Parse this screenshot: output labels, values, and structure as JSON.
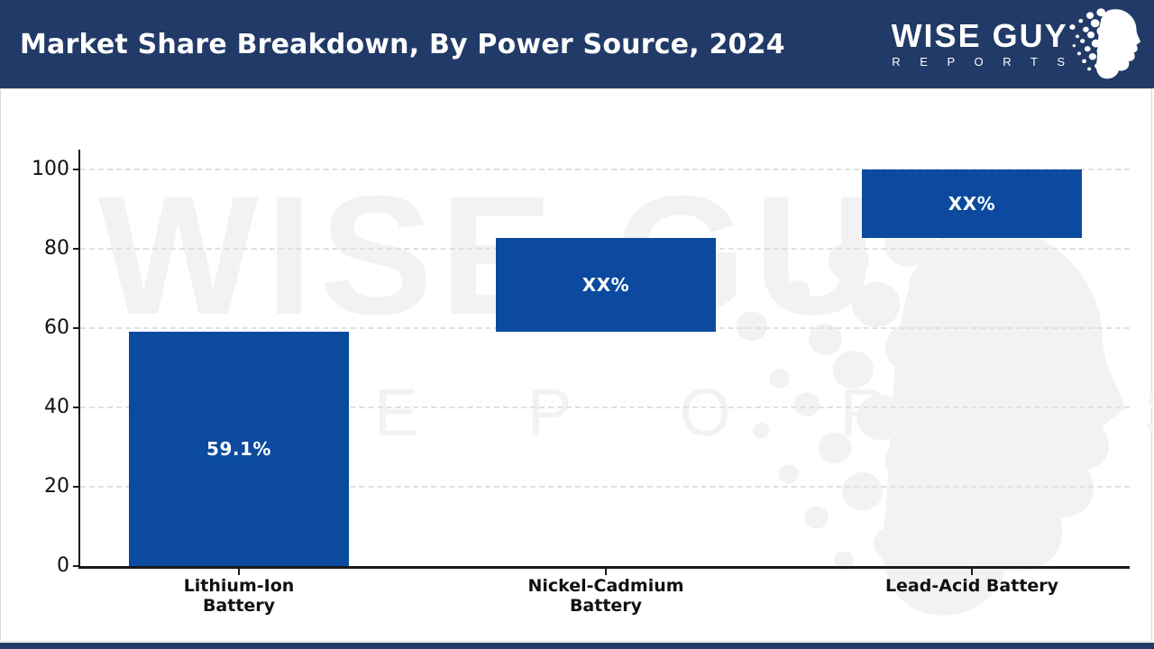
{
  "header": {
    "title": "Market Share Breakdown, By Power Source, 2024",
    "logo": {
      "wordmark": "WISE GUY",
      "subtitle": "R E P O R T S"
    }
  },
  "watermark": {
    "wordmark": "WISE GUY",
    "subtitle": "R E P O R T S"
  },
  "chart_data": {
    "type": "bar",
    "variant": "waterfall-stacked-breakdown",
    "title": "Market Share Breakdown, By Power Source, 2024",
    "categories": [
      "Lithium-Ion Battery",
      "Nickel-Cadmium Battery",
      "Lead-Acid Battery"
    ],
    "categories_wrapped": [
      "Lithium-Ion\nBattery",
      "Nickel-Cadmium\nBattery",
      "Lead-Acid Battery"
    ],
    "segments": [
      {
        "category": "Lithium-Ion Battery",
        "start": 0,
        "end": 59.1,
        "label": "59.1%"
      },
      {
        "category": "Nickel-Cadmium Battery",
        "start": 59.1,
        "end": 82.8,
        "label": "XX%"
      },
      {
        "category": "Lead-Acid Battery",
        "start": 82.8,
        "end": 100,
        "label": "XX%"
      }
    ],
    "yticks": [
      0,
      20,
      40,
      60,
      80,
      100
    ],
    "ylim": [
      0,
      100
    ],
    "xlabel": "",
    "ylabel": "",
    "grid": "horizontal-dashed",
    "legend": "none"
  },
  "colors": {
    "header_bg": "#213a67",
    "footer_bg": "#213a67",
    "bar_fill": "#0b4a9f",
    "bar_label": "#ffffff",
    "axis": "#1a1a1a",
    "gridline": "#e0e0e0",
    "watermark": "#f2f2f2",
    "card_border": "#d9d9d9",
    "title_text": "#ffffff"
  }
}
